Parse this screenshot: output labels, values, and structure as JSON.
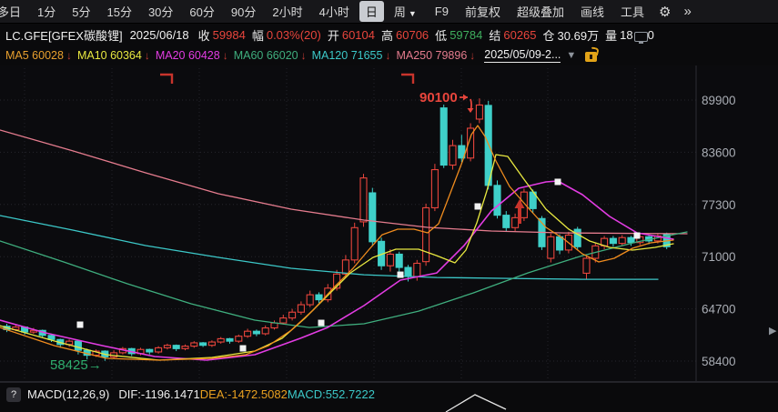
{
  "toolbar": {
    "tabs": [
      {
        "label": "多日",
        "active": false
      },
      {
        "label": "1分",
        "active": false
      },
      {
        "label": "5分",
        "active": false
      },
      {
        "label": "15分",
        "active": false
      },
      {
        "label": "30分",
        "active": false
      },
      {
        "label": "60分",
        "active": false
      },
      {
        "label": "90分",
        "active": false
      },
      {
        "label": "2小时",
        "active": false
      },
      {
        "label": "4小时",
        "active": false
      },
      {
        "label": "日",
        "active": true
      },
      {
        "label": "周",
        "active": false,
        "dropdown": "▼"
      }
    ],
    "actions": [
      {
        "label": "F9",
        "icon": false,
        "name": "f9-button"
      },
      {
        "label": "前复权",
        "icon": false,
        "name": "forward-adjust-button"
      },
      {
        "label": "超级叠加",
        "icon": false,
        "name": "super-overlay-button"
      },
      {
        "label": "画线",
        "icon": false,
        "name": "draw-line-button"
      },
      {
        "label": "工具",
        "icon": false,
        "name": "tools-button"
      },
      {
        "label": "⚙",
        "icon": true,
        "name": "gear-icon"
      },
      {
        "label": "»",
        "icon": true,
        "name": "more-icon"
      }
    ]
  },
  "quote_bar": {
    "symbol": "LC.GFE[GFEX碳酸锂]",
    "date": "2025/06/18",
    "fields": [
      {
        "label": "收",
        "value": "59984",
        "color": "#e8453c"
      },
      {
        "label": "幅",
        "value": "0.03%(20)",
        "color": "#e8453c"
      },
      {
        "label": "开",
        "value": "60104",
        "color": "#e8453c"
      },
      {
        "label": "高",
        "value": "60706",
        "color": "#e8453c"
      },
      {
        "label": "低",
        "value": "59784",
        "color": "#3fae5e"
      },
      {
        "label": "结",
        "value": "60265",
        "color": "#e8453c"
      },
      {
        "label": "仓",
        "value": "30.69万",
        "color": "#ededed"
      },
      {
        "label": "量",
        "value": "18",
        "color": "#ededed",
        "icon": "screen-cast-icon",
        "value_after": "0"
      }
    ]
  },
  "ma_bar": {
    "items": [
      {
        "label": "MA5",
        "value": "60028",
        "color": "#e8a02e"
      },
      {
        "label": "MA10",
        "value": "60364",
        "color": "#e8e840"
      },
      {
        "label": "MA20",
        "value": "60428",
        "color": "#e23ce2"
      },
      {
        "label": "MA60",
        "value": "66020",
        "color": "#3fae7e"
      },
      {
        "label": "MA120",
        "value": "71655",
        "color": "#3cc8c8"
      },
      {
        "label": "MA250",
        "value": "79896",
        "color": "#e57c8e"
      }
    ],
    "arrow": "↓",
    "range_label": "2025/05/09-2...",
    "range_dropdown": "▼",
    "lock_icon": "lock-open-icon"
  },
  "chart_data": {
    "type": "candlestick",
    "title": "LC.GFE GFEX碳酸锂 daily",
    "up_color": "#e8453c",
    "down_color": "#3fd0c9",
    "axis": {
      "side": "right",
      "tick_prices": [
        89900,
        83600,
        77300,
        71000,
        64700,
        58400
      ],
      "tick_labels": [
        "89900",
        "83600",
        "77300",
        "71000",
        "64700",
        "58400"
      ],
      "label_color": "#a9adb4"
    },
    "candles_ohlc_lh": [
      [
        62600,
        62200,
        61900,
        62900
      ],
      [
        62200,
        62500,
        62000,
        62800
      ],
      [
        62500,
        61900,
        61600,
        62600
      ],
      [
        61900,
        62100,
        61700,
        62400
      ],
      [
        62100,
        61500,
        61200,
        62200
      ],
      [
        61500,
        61000,
        60700,
        61700
      ],
      [
        61000,
        60400,
        60000,
        61100
      ],
      [
        60400,
        60800,
        60100,
        61000
      ],
      [
        60800,
        59700,
        59200,
        60900
      ],
      [
        59700,
        59100,
        58600,
        59900
      ],
      [
        59100,
        59600,
        58900,
        59800
      ],
      [
        59600,
        58900,
        58425,
        59700
      ],
      [
        58900,
        59400,
        58700,
        59700
      ],
      [
        59400,
        59900,
        59200,
        60100
      ],
      [
        59900,
        59300,
        59000,
        60000
      ],
      [
        59300,
        59800,
        59100,
        60000
      ],
      [
        59800,
        59500,
        59200,
        59900
      ],
      [
        59500,
        60000,
        59300,
        60200
      ],
      [
        60000,
        60300,
        59800,
        60500
      ],
      [
        60300,
        59900,
        59600,
        60400
      ],
      [
        59900,
        60200,
        59700,
        60400
      ],
      [
        60200,
        60600,
        60000,
        60800
      ],
      [
        60600,
        60300,
        60100,
        60700
      ],
      [
        60300,
        60700,
        60100,
        60900
      ],
      [
        60700,
        61100,
        60500,
        61300
      ],
      [
        61100,
        60800,
        60500,
        61200
      ],
      [
        60800,
        61400,
        60600,
        61600
      ],
      [
        61400,
        62000,
        61200,
        62300
      ],
      [
        62000,
        61700,
        61400,
        62200
      ],
      [
        61700,
        62400,
        61500,
        62700
      ],
      [
        62400,
        63000,
        62200,
        63300
      ],
      [
        63000,
        63600,
        62800,
        64000
      ],
      [
        63600,
        64300,
        63300,
        64700
      ],
      [
        64300,
        65200,
        64000,
        65600
      ],
      [
        65200,
        66400,
        64900,
        66900
      ],
      [
        66400,
        65800,
        65400,
        66700
      ],
      [
        65800,
        67200,
        65500,
        67700
      ],
      [
        67200,
        68900,
        66900,
        69400
      ],
      [
        68900,
        70600,
        68500,
        71200
      ],
      [
        70600,
        74500,
        70200,
        75100
      ],
      [
        75200,
        80500,
        74600,
        81000
      ],
      [
        78700,
        72800,
        72300,
        79300
      ],
      [
        72850,
        69900,
        69400,
        73300
      ],
      [
        69900,
        71300,
        69200,
        71900
      ],
      [
        71300,
        69700,
        69000,
        71600
      ],
      [
        69700,
        68600,
        68000,
        70000
      ],
      [
        68600,
        70200,
        68100,
        70600
      ],
      [
        70400,
        76900,
        69900,
        77400
      ],
      [
        76900,
        81500,
        76500,
        82200
      ],
      [
        88950,
        82050,
        81700,
        89350
      ],
      [
        82050,
        84400,
        81500,
        85100
      ],
      [
        84400,
        82900,
        82400,
        85700
      ],
      [
        82900,
        86500,
        82500,
        87100
      ],
      [
        87600,
        89300,
        87100,
        90100
      ],
      [
        89250,
        79600,
        79100,
        89800
      ],
      [
        79600,
        76000,
        75600,
        80200
      ],
      [
        76000,
        74500,
        74000,
        76500
      ],
      [
        74500,
        75700,
        74100,
        76200
      ],
      [
        75700,
        78800,
        75300,
        79200
      ],
      [
        78800,
        76800,
        76300,
        79100
      ],
      [
        75600,
        72200,
        71800,
        75900
      ],
      [
        70800,
        73400,
        70300,
        73800
      ],
      [
        73400,
        71800,
        71300,
        73700
      ],
      [
        71800,
        73600,
        71400,
        74000
      ],
      [
        74300,
        72200,
        71800,
        74600
      ],
      [
        69000,
        70800,
        68310,
        71100
      ],
      [
        70800,
        72300,
        70300,
        72600
      ],
      [
        72300,
        73200,
        71900,
        73500
      ],
      [
        73200,
        72600,
        72200,
        73500
      ],
      [
        72600,
        73300,
        72300,
        73600
      ],
      [
        73300,
        72700,
        72300,
        73500
      ],
      [
        72700,
        73400,
        72400,
        73700
      ],
      [
        73400,
        72900,
        72500,
        73600
      ],
      [
        72900,
        73500,
        72600,
        73800
      ],
      [
        73700,
        72200,
        71900,
        73900
      ]
    ],
    "ma_lines": [
      {
        "name": "MA250",
        "color": "#e57c8e",
        "points": [
          [
            0,
            86280
          ],
          [
            80,
            83760
          ],
          [
            160,
            81120
          ],
          [
            240,
            78600
          ],
          [
            320,
            76730
          ],
          [
            400,
            75410
          ],
          [
            470,
            74530
          ],
          [
            540,
            74090
          ],
          [
            620,
            73870
          ],
          [
            755,
            73770
          ]
        ]
      },
      {
        "name": "MA120",
        "color": "#3cc8c8",
        "points": [
          [
            0,
            75960
          ],
          [
            80,
            74200
          ],
          [
            160,
            72335
          ],
          [
            240,
            70910
          ],
          [
            320,
            69590
          ],
          [
            400,
            68820
          ],
          [
            480,
            68490
          ],
          [
            560,
            68380
          ],
          [
            640,
            68270
          ],
          [
            723,
            68270
          ]
        ]
      },
      {
        "name": "MA60",
        "color": "#3fae7e",
        "points": [
          [
            0,
            72885
          ],
          [
            70,
            70360
          ],
          [
            140,
            67725
          ],
          [
            210,
            65310
          ],
          [
            280,
            63335
          ],
          [
            340,
            62455
          ],
          [
            400,
            62895
          ],
          [
            460,
            64430
          ],
          [
            520,
            66625
          ],
          [
            580,
            69040
          ],
          [
            640,
            71125
          ],
          [
            700,
            72775
          ],
          [
            755,
            73980
          ]
        ]
      },
      {
        "name": "MA20",
        "color": "#e23ce2",
        "points": [
          [
            0,
            63335
          ],
          [
            50,
            61800
          ],
          [
            113,
            60260
          ],
          [
            170,
            58945
          ],
          [
            227,
            58505
          ],
          [
            280,
            59165
          ],
          [
            330,
            61140
          ],
          [
            360,
            62455
          ],
          [
            400,
            65090
          ],
          [
            440,
            68165
          ],
          [
            480,
            69040
          ],
          [
            510,
            72335
          ],
          [
            540,
            76510
          ],
          [
            570,
            79255
          ],
          [
            600,
            80025
          ],
          [
            613,
            80135
          ],
          [
            640,
            78490
          ],
          [
            670,
            75850
          ],
          [
            700,
            73875
          ],
          [
            740,
            73105
          ]
        ]
      },
      {
        "name": "MA10",
        "color": "#e8e840",
        "points": [
          [
            0,
            62675
          ],
          [
            60,
            60810
          ],
          [
            117,
            59165
          ],
          [
            175,
            58505
          ],
          [
            233,
            58835
          ],
          [
            280,
            59605
          ],
          [
            310,
            61140
          ],
          [
            335,
            63555
          ],
          [
            360,
            66300
          ],
          [
            385,
            69040
          ],
          [
            410,
            70910
          ],
          [
            435,
            71895
          ],
          [
            460,
            71895
          ],
          [
            480,
            71125
          ],
          [
            500,
            70250
          ],
          [
            512,
            71785
          ],
          [
            524,
            75080
          ],
          [
            535,
            78925
          ],
          [
            545,
            83315
          ],
          [
            558,
            83095
          ],
          [
            575,
            80465
          ],
          [
            600,
            76730
          ],
          [
            625,
            74310
          ],
          [
            648,
            72885
          ],
          [
            670,
            72115
          ],
          [
            695,
            71785
          ],
          [
            720,
            72115
          ],
          [
            740,
            72555
          ]
        ]
      },
      {
        "name": "MA5",
        "color": "#f08c1e",
        "points": [
          [
            0,
            62455
          ],
          [
            60,
            60260
          ],
          [
            117,
            58725
          ],
          [
            175,
            58505
          ],
          [
            233,
            58725
          ],
          [
            270,
            59165
          ],
          [
            295,
            60260
          ],
          [
            320,
            62125
          ],
          [
            345,
            64650
          ],
          [
            368,
            67395
          ],
          [
            388,
            69590
          ],
          [
            405,
            71785
          ],
          [
            420,
            73650
          ],
          [
            437,
            74310
          ],
          [
            455,
            74310
          ],
          [
            470,
            73875
          ],
          [
            482,
            74970
          ],
          [
            495,
            78705
          ],
          [
            508,
            82435
          ],
          [
            518,
            85730
          ],
          [
            525,
            86825
          ],
          [
            533,
            85510
          ],
          [
            545,
            82545
          ],
          [
            560,
            79475
          ],
          [
            580,
            76950
          ],
          [
            600,
            74530
          ],
          [
            620,
            73105
          ],
          [
            640,
            71345
          ],
          [
            658,
            70360
          ],
          [
            675,
            70800
          ],
          [
            695,
            72005
          ],
          [
            715,
            72665
          ],
          [
            740,
            72995
          ]
        ]
      }
    ],
    "markers_white_squares": [
      [
        88,
        62790
      ],
      [
        267,
        59935
      ],
      [
        353,
        63005
      ],
      [
        440,
        68820
      ],
      [
        525,
        77060
      ],
      [
        613,
        80025
      ],
      [
        700,
        73545
      ]
    ],
    "annotations": {
      "high_label": {
        "text": "90100",
        "color": "#e8453c",
        "price": 90100
      },
      "low_label": {
        "text": "58425→",
        "color": "#2fae6e",
        "price": 58425
      },
      "buy_arrow": {
        "color": "#c8342c"
      },
      "corner_marks": {
        "color": "#c8342c",
        "count": 2
      }
    },
    "expander_icon": "▶"
  },
  "macd_bar": {
    "help_icon": "?",
    "formula": "MACD(12,26,9)",
    "values": [
      {
        "text": "DIF:-1196.1471",
        "color": "#ededed"
      },
      {
        "text": "DEA:-1472.5082",
        "color": "#e8a020"
      },
      {
        "text": "MACD:552.7222",
        "color": "#3cc8c8"
      }
    ]
  }
}
